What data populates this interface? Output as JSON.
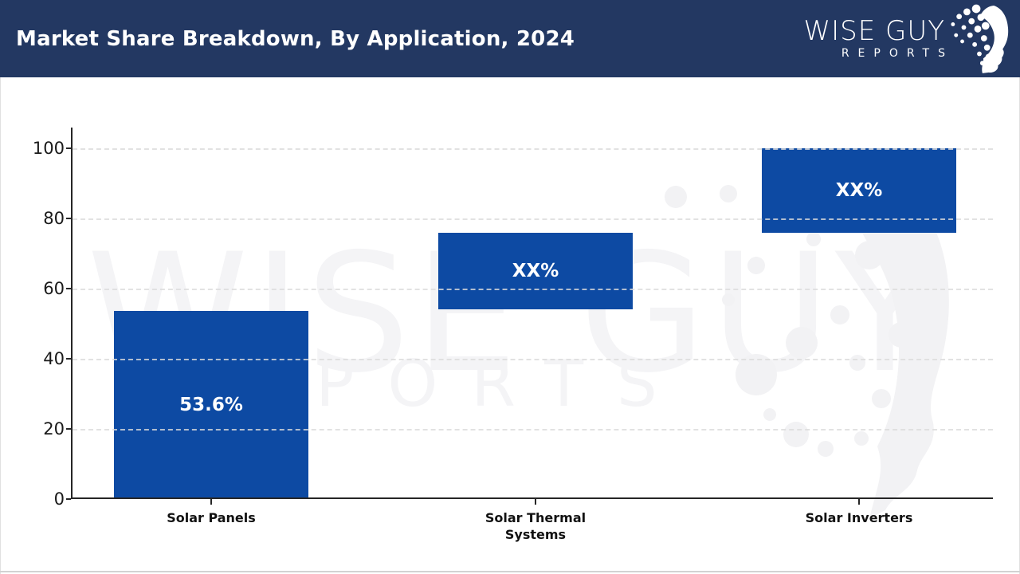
{
  "header": {
    "title": "Market Share Breakdown, By Application, 2024",
    "logo": {
      "line1": "WISE GUY",
      "line2": "REPORTS"
    }
  },
  "watermark": {
    "line1": "WISE GUY",
    "line2": "REPORTS"
  },
  "colors": {
    "header_bg": "#233862",
    "bar": "#0d4aa3",
    "grid": "#dcdcdc",
    "axis": "#262626",
    "bar_label": "#ffffff",
    "watermark": "#f4f4f6"
  },
  "chart_data": {
    "type": "bar",
    "subtype": "floating-segment-percentage",
    "title": "Market Share Breakdown, By Application, 2024",
    "categories": [
      "Solar Panels",
      "Solar Thermal Systems",
      "Solar Inverters"
    ],
    "bars": [
      {
        "category": "Solar Panels",
        "start": 0,
        "end": 53.6,
        "label": "53.6%"
      },
      {
        "category": "Solar Thermal Systems",
        "start": 54,
        "end": 76,
        "label": "XX%"
      },
      {
        "category": "Solar Inverters",
        "start": 76,
        "end": 100,
        "label": "XX%"
      }
    ],
    "xlabel": "",
    "ylabel": "",
    "ylim": [
      0,
      100
    ],
    "yticks": [
      0,
      20,
      40,
      60,
      80,
      100
    ],
    "grid": "horizontal-dashed",
    "legend": "none"
  }
}
